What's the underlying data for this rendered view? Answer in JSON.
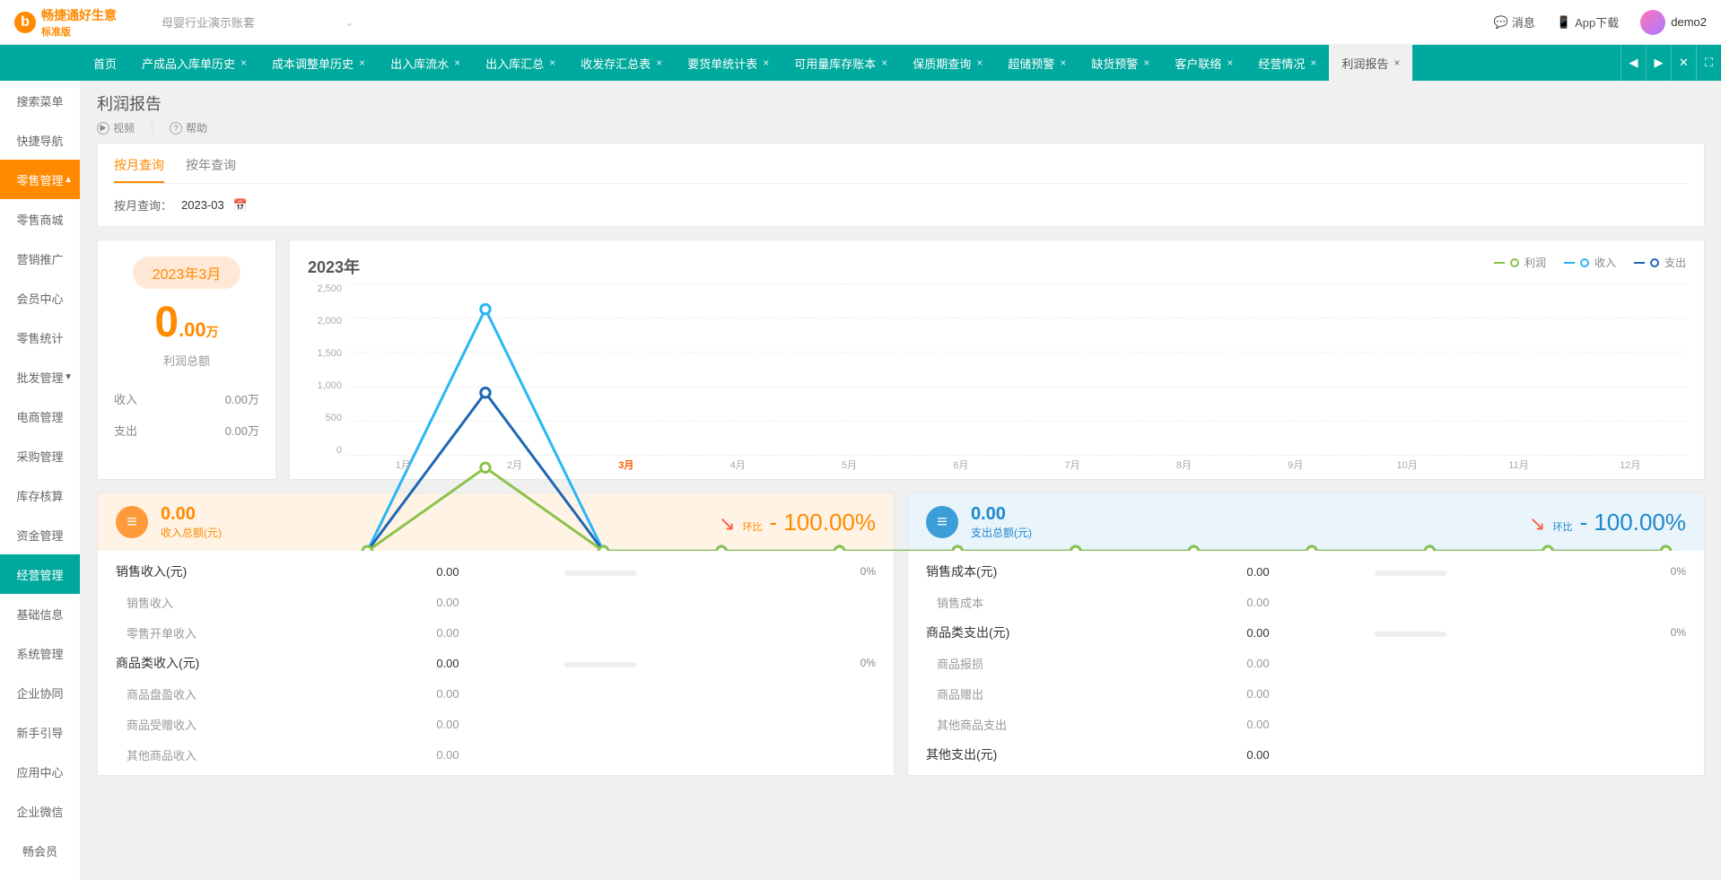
{
  "header": {
    "brand_main": "畅捷通好生意",
    "brand_sub": "标准版",
    "account_name": "母婴行业演示账套",
    "msg_label": "消息",
    "app_label": "App下载",
    "user_name": "demo2"
  },
  "tabs": [
    {
      "label": "首页",
      "closable": false
    },
    {
      "label": "产成品入库单历史",
      "closable": true
    },
    {
      "label": "成本调整单历史",
      "closable": true
    },
    {
      "label": "出入库流水",
      "closable": true
    },
    {
      "label": "出入库汇总",
      "closable": true
    },
    {
      "label": "收发存汇总表",
      "closable": true
    },
    {
      "label": "要货单统计表",
      "closable": true
    },
    {
      "label": "可用量库存账本",
      "closable": true
    },
    {
      "label": "保质期查询",
      "closable": true
    },
    {
      "label": "超储预警",
      "closable": true
    },
    {
      "label": "缺货预警",
      "closable": true
    },
    {
      "label": "客户联络",
      "closable": true
    },
    {
      "label": "经营情况",
      "closable": true
    },
    {
      "label": "利润报告",
      "closable": true,
      "active": true
    }
  ],
  "sidebar": [
    {
      "label": "搜索菜单"
    },
    {
      "label": "快捷导航"
    },
    {
      "label": "零售管理",
      "style": "orange",
      "caret": "▲"
    },
    {
      "label": "零售商城"
    },
    {
      "label": "营销推广"
    },
    {
      "label": "会员中心"
    },
    {
      "label": "零售统计"
    },
    {
      "label": "批发管理",
      "caret": "▼"
    },
    {
      "label": "电商管理"
    },
    {
      "label": "采购管理"
    },
    {
      "label": "库存核算"
    },
    {
      "label": "资金管理"
    },
    {
      "label": "经营管理",
      "style": "teal"
    },
    {
      "label": "基础信息"
    },
    {
      "label": "系统管理"
    },
    {
      "label": "企业协同"
    },
    {
      "label": "新手引导"
    },
    {
      "label": "应用中心"
    },
    {
      "label": "企业微信"
    },
    {
      "label": "畅会员"
    }
  ],
  "page": {
    "title": "利润报告",
    "help_video": "视频",
    "help_text": "帮助",
    "query_tabs": [
      "按月查询",
      "按年查询"
    ],
    "active_query_tab": 0,
    "filter_label": "按月查询：",
    "filter_value": "2023-03"
  },
  "summary": {
    "month_badge": "2023年3月",
    "profit_int": "0",
    "profit_dec": ".00",
    "profit_unit": "万",
    "profit_label": "利润总额",
    "rows": [
      {
        "name": "收入",
        "value": "0.00万"
      },
      {
        "name": "支出",
        "value": "0.00万"
      }
    ]
  },
  "chart": {
    "title": "2023年",
    "legend": [
      {
        "name": "利润",
        "color": "#8bc34a"
      },
      {
        "name": "收入",
        "color": "#29b6f6"
      },
      {
        "name": "支出",
        "color": "#1e67b4"
      }
    ],
    "y_ticks": [
      "2,500",
      "2,000",
      "1,500",
      "1,000",
      "500",
      "0"
    ],
    "y_max": 2500,
    "x_labels": [
      "1月",
      "2月",
      "3月",
      "4月",
      "5月",
      "6月",
      "7月",
      "8月",
      "9月",
      "10月",
      "11月",
      "12月"
    ],
    "highlight_index": 2,
    "series": {
      "profit": [
        0,
        780,
        0,
        0,
        0,
        0,
        0,
        0,
        0,
        0,
        0,
        0
      ],
      "income": [
        0,
        2260,
        0,
        0,
        0,
        0,
        0,
        0,
        0,
        0,
        0,
        0
      ],
      "expense": [
        0,
        1480,
        0,
        0,
        0,
        0,
        0,
        0,
        0,
        0,
        0,
        0
      ]
    },
    "grid_color": "#eeeeee",
    "bg_color": "#ffffff"
  },
  "income_card": {
    "value": "0.00",
    "label": "收入总额(元)",
    "hb_label": "环比",
    "pct": "- 100.00%",
    "rows": [
      {
        "name": "销售收入(元)",
        "value": "0.00",
        "pct": "0%",
        "bold": true
      },
      {
        "name": "销售收入",
        "value": "0.00",
        "sub": true
      },
      {
        "name": "零售开单收入",
        "value": "0.00",
        "sub": true
      },
      {
        "name": "商品类收入(元)",
        "value": "0.00",
        "pct": "0%",
        "bold": true
      },
      {
        "name": "商品盘盈收入",
        "value": "0.00",
        "sub": true
      },
      {
        "name": "商品受赠收入",
        "value": "0.00",
        "sub": true
      },
      {
        "name": "其他商品收入",
        "value": "0.00",
        "sub": true
      }
    ]
  },
  "expense_card": {
    "value": "0.00",
    "label": "支出总额(元)",
    "hb_label": "环比",
    "pct": "- 100.00%",
    "rows": [
      {
        "name": "销售成本(元)",
        "value": "0.00",
        "pct": "0%",
        "bold": true
      },
      {
        "name": "销售成本",
        "value": "0.00",
        "sub": true
      },
      {
        "name": "商品类支出(元)",
        "value": "0.00",
        "pct": "0%",
        "bold": true
      },
      {
        "name": "商品报损",
        "value": "0.00",
        "sub": true
      },
      {
        "name": "商品赠出",
        "value": "0.00",
        "sub": true
      },
      {
        "name": "其他商品支出",
        "value": "0.00",
        "sub": true
      },
      {
        "name": "其他支出(元)",
        "value": "0.00",
        "bold": true
      }
    ]
  }
}
